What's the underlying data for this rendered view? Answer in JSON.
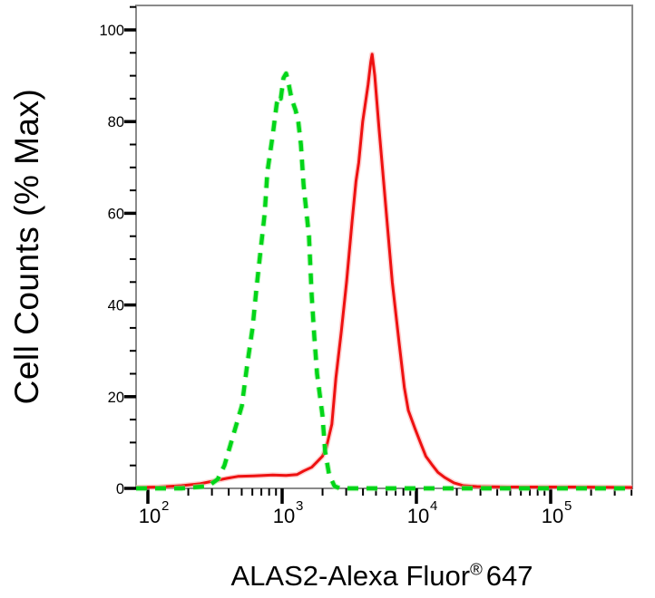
{
  "figure": {
    "background": "#ffffff",
    "frame_color": "#8a8a8a",
    "tick_color": "#000000",
    "text_color": "#000000"
  },
  "chart_data": {
    "type": "line",
    "subtype": "flow-cytometry-histogram-overlay",
    "title": "",
    "xlabel": "ALAS2-Alexa Fluor®647",
    "xlabel_main": "ALAS2-Alexa Fluor",
    "xlabel_sup": "®",
    "xlabel_suffix": "647",
    "ylabel": "Cell Counts (% Max)",
    "x_scale": "log10",
    "x_range_log10": [
      1.91,
      5.61
    ],
    "ylim": [
      0,
      105.5
    ],
    "grid": false,
    "legend": "none",
    "x_ticks_major": [
      {
        "base": "10",
        "exp": "2",
        "log10": 2
      },
      {
        "base": "10",
        "exp": "3",
        "log10": 3
      },
      {
        "base": "10",
        "exp": "4",
        "log10": 4
      },
      {
        "base": "10",
        "exp": "5",
        "log10": 5
      }
    ],
    "x_minor_decades": [
      2,
      3,
      4,
      5
    ],
    "y_ticks_major": [
      {
        "label": "0",
        "value": 0
      },
      {
        "label": "20",
        "value": 20
      },
      {
        "label": "40",
        "value": 40
      },
      {
        "label": "60",
        "value": 60
      },
      {
        "label": "80",
        "value": 80
      },
      {
        "label": "100",
        "value": 100
      }
    ],
    "y_minor_step": 5,
    "y_minor_max": 105,
    "series": [
      {
        "id": "red-solid-curve",
        "description": "solid red histogram, peak ~95% at ~4.7e3",
        "color": "#ee1111",
        "halo": "#ffb5b5",
        "line_style": "solid",
        "points": [
          [
            1.91,
            0.2
          ],
          [
            2.08,
            0.3
          ],
          [
            2.25,
            0.6
          ],
          [
            2.39,
            1.0
          ],
          [
            2.49,
            1.6
          ],
          [
            2.59,
            2.2
          ],
          [
            2.67,
            2.6
          ],
          [
            2.79,
            2.7
          ],
          [
            2.93,
            2.9
          ],
          [
            3.03,
            2.8
          ],
          [
            3.11,
            3.0
          ],
          [
            3.16,
            3.8
          ],
          [
            3.22,
            4.6
          ],
          [
            3.26,
            5.8
          ],
          [
            3.3,
            7
          ],
          [
            3.33,
            9
          ],
          [
            3.37,
            14
          ],
          [
            3.4,
            24
          ],
          [
            3.44,
            34
          ],
          [
            3.48,
            45
          ],
          [
            3.52,
            58
          ],
          [
            3.55,
            67
          ],
          [
            3.57,
            71
          ],
          [
            3.6,
            80
          ],
          [
            3.64,
            88
          ],
          [
            3.66,
            93
          ],
          [
            3.67,
            94.7
          ],
          [
            3.69,
            90
          ],
          [
            3.72,
            79
          ],
          [
            3.77,
            62
          ],
          [
            3.82,
            45
          ],
          [
            3.87,
            32
          ],
          [
            3.91,
            22
          ],
          [
            3.94,
            17
          ],
          [
            3.99,
            13
          ],
          [
            4.03,
            10
          ],
          [
            4.07,
            7
          ],
          [
            4.12,
            5
          ],
          [
            4.16,
            3.5
          ],
          [
            4.21,
            2.4
          ],
          [
            4.28,
            1.2
          ],
          [
            4.35,
            0.6
          ],
          [
            4.45,
            0.4
          ],
          [
            4.68,
            0.3
          ],
          [
            5.16,
            0.3
          ],
          [
            5.61,
            0.2
          ]
        ]
      },
      {
        "id": "green-dashed-curve",
        "description": "dashed green histogram, peak ~90% at ~1.05e3",
        "color": "#00d518",
        "halo": "#9af09a",
        "line_style": "dashed",
        "dash": "12 9",
        "points": [
          [
            1.91,
            0
          ],
          [
            2.25,
            0
          ],
          [
            2.45,
            0.5
          ],
          [
            2.52,
            2
          ],
          [
            2.57,
            5
          ],
          [
            2.64,
            12
          ],
          [
            2.7,
            18
          ],
          [
            2.74,
            27
          ],
          [
            2.78,
            35
          ],
          [
            2.81,
            44
          ],
          [
            2.84,
            52
          ],
          [
            2.87,
            60
          ],
          [
            2.89,
            69
          ],
          [
            2.93,
            77
          ],
          [
            2.96,
            84
          ],
          [
            2.98,
            85.5
          ],
          [
            2.99,
            85
          ],
          [
            3.01,
            89.5
          ],
          [
            3.03,
            90.5
          ],
          [
            3.05,
            88
          ],
          [
            3.07,
            85
          ],
          [
            3.1,
            82.5
          ],
          [
            3.12,
            80
          ],
          [
            3.14,
            75
          ],
          [
            3.16,
            66
          ],
          [
            3.2,
            55
          ],
          [
            3.22,
            42
          ],
          [
            3.24,
            33
          ],
          [
            3.26,
            25
          ],
          [
            3.3,
            16
          ],
          [
            3.32,
            8
          ],
          [
            3.35,
            3
          ],
          [
            3.39,
            0.5
          ],
          [
            3.43,
            0
          ],
          [
            5.61,
            0
          ]
        ]
      }
    ]
  }
}
